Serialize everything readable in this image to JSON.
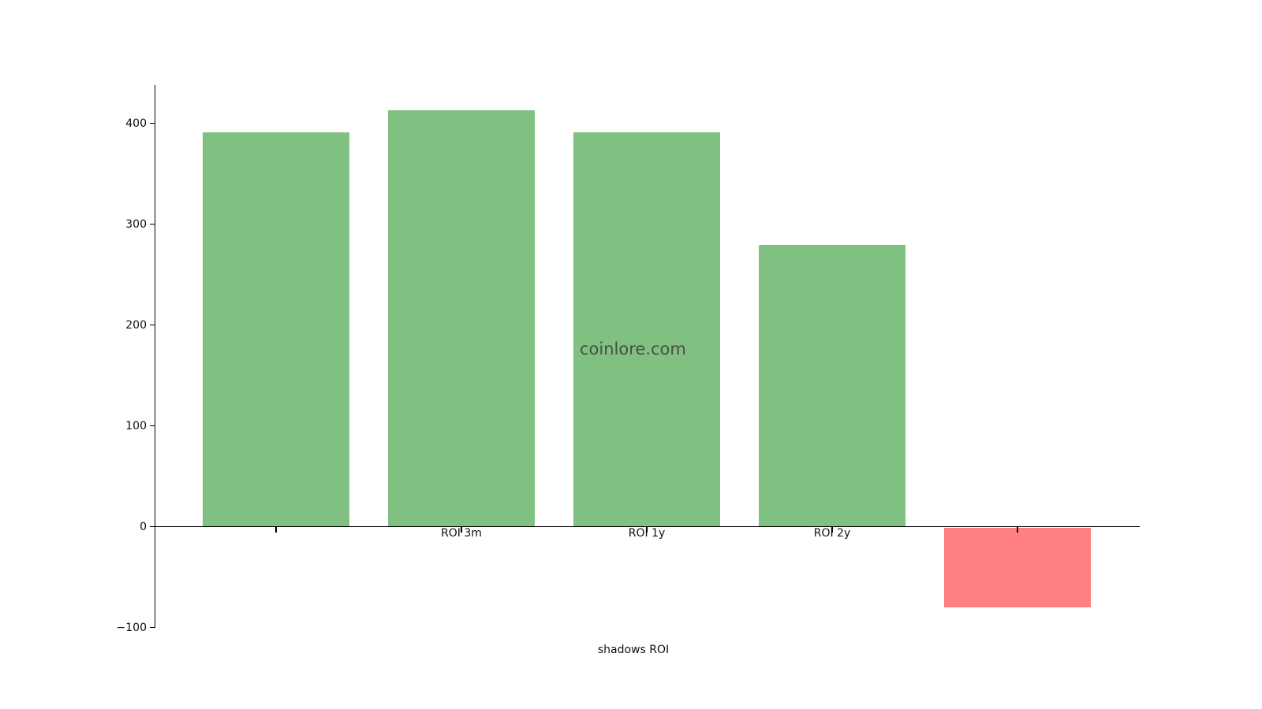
{
  "page": {
    "background_color": "#ffffff"
  },
  "watermark": {
    "text": "coinlore.com",
    "color": "#3c3c3c"
  },
  "chart_data": {
    "type": "bar",
    "title": "",
    "xlabel": "shadows ROI",
    "ylabel": "",
    "categories": [
      "",
      "ROI 3m",
      "ROI 1y",
      "ROI 2y",
      ""
    ],
    "values": [
      391,
      413,
      391,
      279,
      -79
    ],
    "series": [
      {
        "name": "shadows ROI",
        "values": [
          391,
          413,
          391,
          279,
          -79
        ]
      }
    ],
    "bar_colors": [
      "#80c080",
      "#80c080",
      "#80c080",
      "#80c080",
      "#ff8080"
    ],
    "positive_color": "#80c080",
    "negative_color": "#ff8080",
    "axis_color": "#000000",
    "tick_label_color": "#111111",
    "yticks": [
      400,
      300,
      200,
      100,
      0,
      -100
    ],
    "ylim": [
      -100,
      438
    ],
    "grid": false,
    "legend_position": "none"
  }
}
